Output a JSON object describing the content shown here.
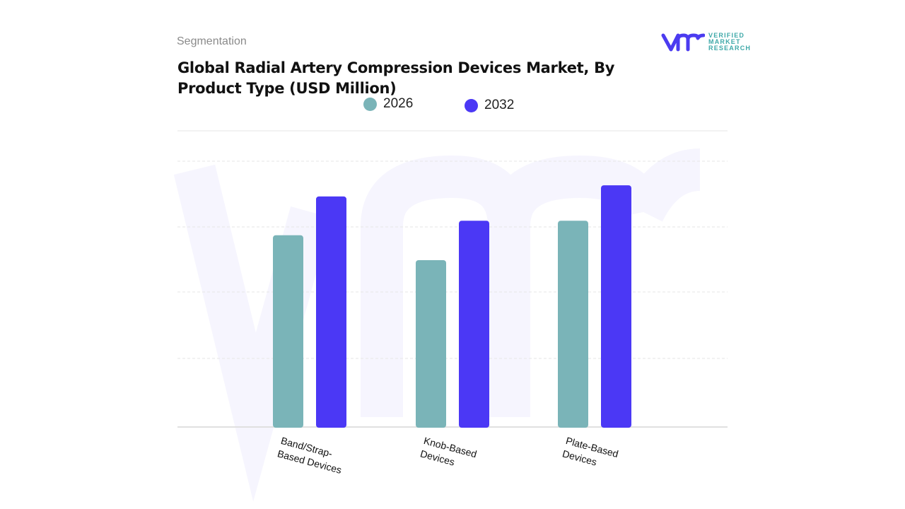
{
  "header": {
    "segment_label": "Segmentation",
    "title": "Global Radial Artery Compression Devices Market, By Product Type (USD Million)"
  },
  "logo": {
    "text_lines": [
      "VERIFIED",
      "MARKET",
      "RESEARCH"
    ],
    "mark": "vmr",
    "color": "#4b3bf0",
    "text_color": "#3fa9a9"
  },
  "chart_data": {
    "type": "bar",
    "title": "Global Radial Artery Compression Devices Market, By Product Type (USD Million)",
    "categories": [
      "Band/Strap-\nBased Devices",
      "Knob-Based\nDevices",
      "Plate-Based\nDevices"
    ],
    "series": [
      {
        "name": "2026",
        "color": "#7ab4b8",
        "values": [
          2.91,
          2.53,
          3.13
        ]
      },
      {
        "name": "2032",
        "color": "#4b38f5",
        "values": [
          3.5,
          3.13,
          3.67
        ]
      }
    ],
    "ylim": [
      0,
      4.5
    ],
    "grid": true,
    "y_ticks_shown": false,
    "legend_position": "top"
  }
}
